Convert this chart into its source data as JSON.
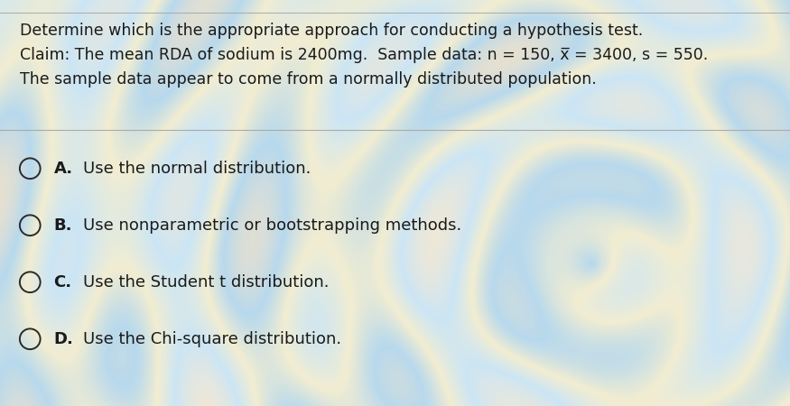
{
  "title_line1": "Determine which is the appropriate approach for conducting a hypothesis test.",
  "title_line2": "Claim: The mean RDA of sodium is 2400mg.  Sample data: n = 150, x̅ = 3400, s = 550.",
  "title_line3": "The sample data appear to come from a normally distributed population.",
  "options": [
    {
      "label": "A.",
      "text": "Use the normal distribution."
    },
    {
      "label": "B.",
      "text": "Use nonparametric or bootstrapping methods."
    },
    {
      "label": "C.",
      "text": "Use the Student t distribution."
    },
    {
      "label": "D.",
      "text": "Use the Chi-square distribution."
    }
  ],
  "text_color": "#1a1a1a",
  "circle_color": "#2a2a2a",
  "font_size_body": 12.5,
  "font_size_options": 13.0,
  "separator_color": "#aaaaaa"
}
